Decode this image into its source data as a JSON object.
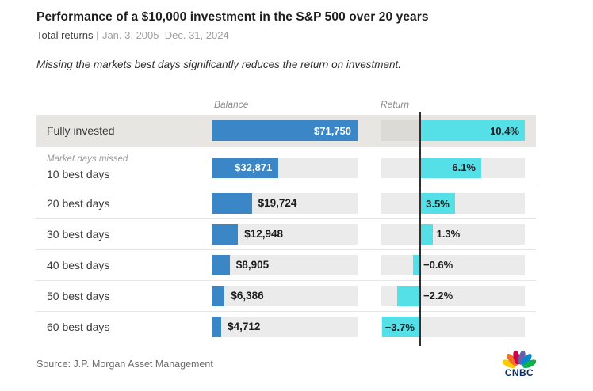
{
  "header": {
    "title": "Performance of a $10,000 investment in the S&P 500 over 20 years",
    "subtitle_label": "Total returns",
    "subtitle_separator": "|",
    "subtitle_date": "Jan. 3, 2005–Dec. 31, 2024"
  },
  "note": "Missing the markets best days significantly reduces the return on investment.",
  "columns": {
    "balance": "Balance",
    "return": "Return"
  },
  "chart_data": {
    "type": "bar",
    "orientation": "horizontal",
    "title": "Performance of a $10,000 investment in the S&P 500 over 20 years",
    "subtitle": "Total returns | Jan. 3, 2005–Dec. 31, 2024",
    "annotation": "Missing the markets best days significantly reduces the return on investment.",
    "column_headers": [
      "Balance",
      "Return"
    ],
    "group_note": "Market days missed",
    "highlighted_row": 0,
    "balance_axis": {
      "min": 0,
      "max": 71750
    },
    "return_axis_pct": {
      "min": -3.85,
      "max": 10.4,
      "zero_line": true
    },
    "categories": [
      "Fully invested",
      "10 best days",
      "20 best days",
      "30 best days",
      "40 best days",
      "50 best days",
      "60 best days"
    ],
    "series": [
      {
        "name": "Balance ($)",
        "values": [
          71750,
          32871,
          19724,
          12948,
          8905,
          6386,
          4712
        ],
        "labels": [
          "$71,750",
          "$32,871",
          "$19,724",
          "$12,948",
          "$8,905",
          "$6,386",
          "$4,712"
        ]
      },
      {
        "name": "Return (%)",
        "values": [
          10.4,
          6.1,
          3.5,
          1.3,
          -0.6,
          -2.2,
          -3.7
        ],
        "labels": [
          "10.4%",
          "6.1%",
          "3.5%",
          "1.3%",
          "−0.6%",
          "−2.2%",
          "−3.7%"
        ]
      }
    ]
  },
  "footer": {
    "source": "Source: J.P. Morgan Asset Management",
    "logo_text": "CNBC"
  },
  "colors": {
    "balance_bar": "#3b86c6",
    "return_bar": "#55dfe6",
    "row_highlight": "#e8e6e3",
    "track": "#ebebeb",
    "highlight_track": "#dcdad7",
    "zero_axis": "#2f2f2f",
    "logo_navy": "#0b2e65",
    "peacock_feathers": [
      "#fccb00",
      "#f37021",
      "#cc004c",
      "#6460aa",
      "#0089d0",
      "#0db14b"
    ]
  }
}
